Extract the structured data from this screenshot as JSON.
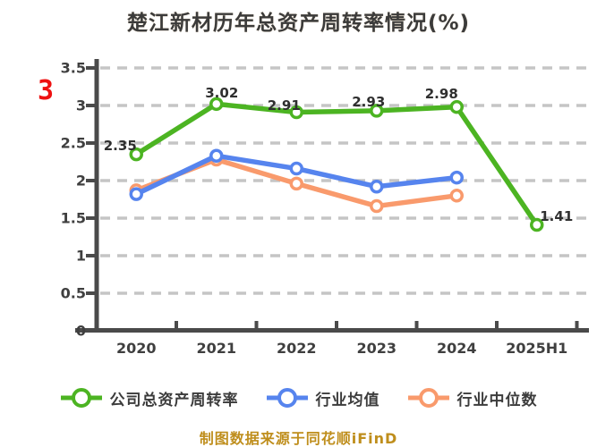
{
  "title": "楚江新材历年总资产周转率情况(%)",
  "annotation": {
    "text": "3",
    "color": "#ee1111"
  },
  "footer": "制图数据来源于同花顺iFinD",
  "colors": {
    "company_green": "#4cb422",
    "industry_avg_blue": "#5684ee",
    "industry_median_orange": "#f99a6c",
    "axis": "#4a4a4a",
    "grid": "#c5c5c5",
    "text": "#3c3c3c",
    "footer_gold": "#bf8e1c",
    "annotation_red": "#ee1111"
  },
  "chart_data": {
    "type": "line",
    "title": "楚江新材历年总资产周转率情况(%)",
    "categories": [
      "2020",
      "2021",
      "2022",
      "2023",
      "2024",
      "2025H1"
    ],
    "series": [
      {
        "name": "公司总资产周转率",
        "color": "#4cb422",
        "values": [
          2.35,
          3.02,
          2.91,
          2.93,
          2.98,
          1.41
        ],
        "labels": [
          "2.35",
          "3.02",
          "2.91",
          "2.93",
          "2.98",
          "1.41"
        ],
        "label_offsets": [
          [
            -18,
            -10
          ],
          [
            6,
            -12
          ],
          [
            -14,
            -8
          ],
          [
            -9,
            -10
          ],
          [
            -17,
            -15
          ],
          [
            22,
            -10
          ]
        ]
      },
      {
        "name": "行业均值",
        "color": "#5684ee",
        "values": [
          1.82,
          2.33,
          2.16,
          1.92,
          2.04
        ]
      },
      {
        "name": "行业中位数",
        "color": "#f99a6c",
        "values": [
          1.87,
          2.28,
          1.96,
          1.66,
          1.8
        ]
      }
    ],
    "xlabel": "",
    "ylabel": "",
    "ylim": [
      0,
      3.5
    ],
    "ytick_step": 0.5,
    "grid": true,
    "grid_style": "dashed",
    "legend_position": "bottom"
  }
}
